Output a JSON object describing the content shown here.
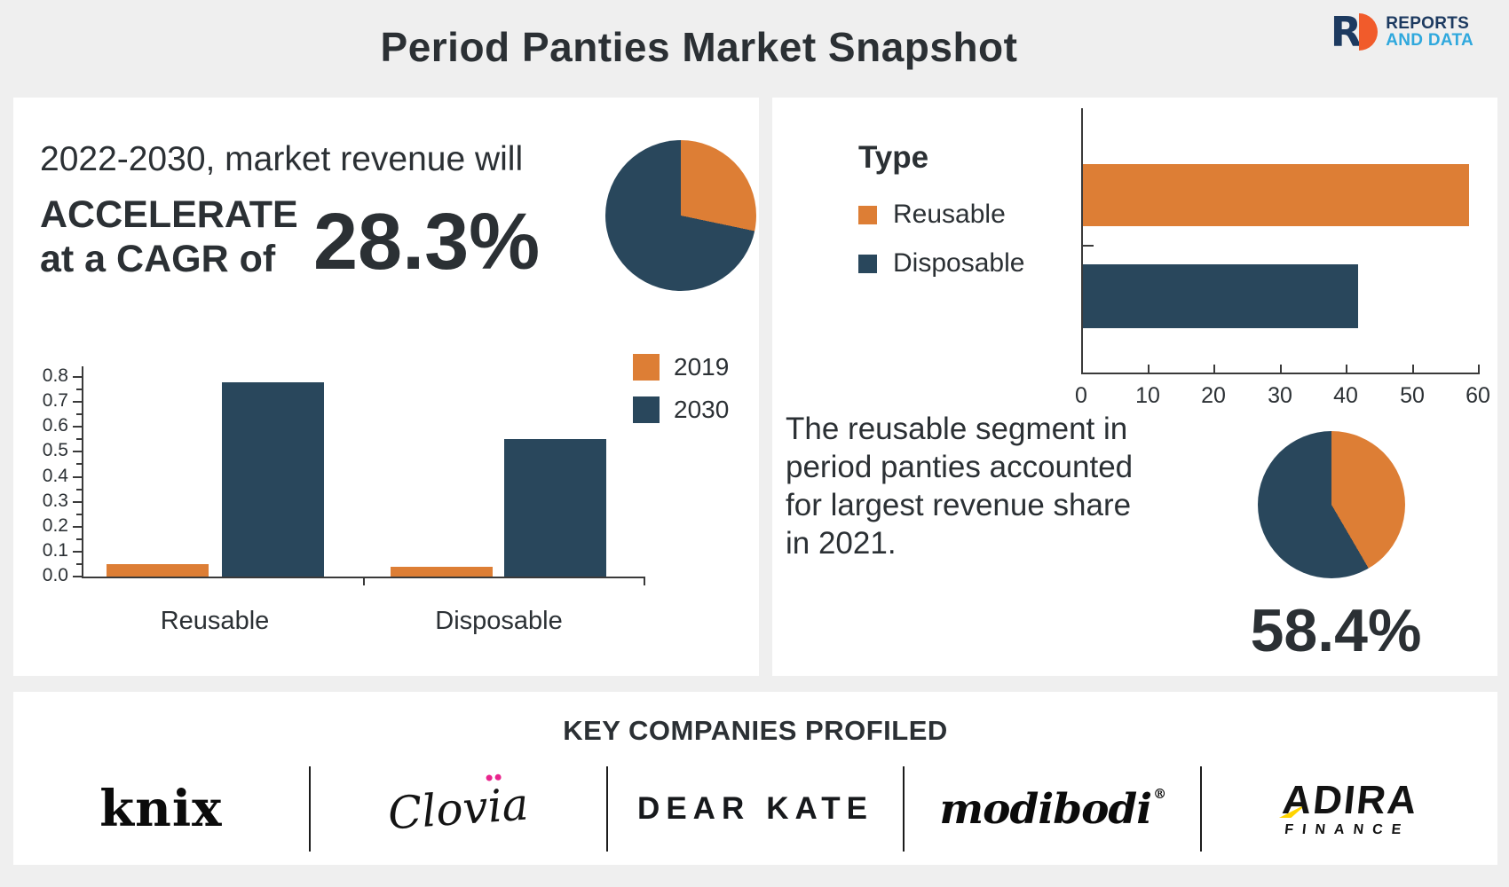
{
  "header": {
    "title": "Period Panties Market Snapshot",
    "logo": {
      "monogram": "R",
      "line1": "REPORTS",
      "line2": "AND DATA"
    }
  },
  "left_panel": {
    "intro_line": "2022-2030, market revenue will",
    "accelerate": "ACCELERATE",
    "cagr_label": "at a CAGR of",
    "cagr_value": "28.3%"
  },
  "right_panel": {
    "legend_title": "Type",
    "caption_lines": [
      "The reusable segment in",
      "period panties accounted",
      "for largest revenue share",
      "in 2021."
    ],
    "share_value": "58.4%"
  },
  "companies": {
    "heading": "KEY COMPANIES PROFILED",
    "knix": "knix",
    "clovia_pre": "Clov",
    "clovia_i": "i",
    "clovia_post": "a",
    "dearkate_word1": "DEAR",
    "dearkate_word2": "KATE",
    "modibodi": "modibodi",
    "modibodi_reg": "®",
    "adira_line1": "ADIRA",
    "adira_line2": "FINANCE"
  },
  "colors": {
    "orange": "#DD7E35",
    "teal": "#29475C",
    "page_bg": "#EFEFEF",
    "card": "#FFFFFF",
    "text": "#2B3034",
    "logo_navy": "#1D3A60",
    "logo_orange": "#F15B2B",
    "logo_blue": "#2FA8DD",
    "clovia_pink": "#E9258D",
    "adira_yellow": "#FFD400"
  },
  "chart_data": [
    {
      "id": "cagr_pie",
      "type": "pie",
      "values": [
        28.3,
        71.7
      ],
      "colors": [
        "#DD7E35",
        "#29475C"
      ]
    },
    {
      "id": "revenue_projection_by_type",
      "type": "bar",
      "categories": [
        "Reusable",
        "Disposable"
      ],
      "series": [
        {
          "name": "2019",
          "color": "#DD7E35",
          "values": [
            0.05,
            0.04
          ]
        },
        {
          "name": "2030",
          "color": "#29475C",
          "values": [
            0.78,
            0.55
          ]
        }
      ],
      "ylim": [
        0,
        0.8
      ],
      "ytick_step": 0.1,
      "legend_position": "top-right",
      "grid": false
    },
    {
      "id": "type_revenue_share",
      "type": "bar-horizontal",
      "bars": [
        {
          "label": "Reusable",
          "value": 58.4,
          "color": "#DD7E35"
        },
        {
          "label": "Disposable",
          "value": 41.6,
          "color": "#29475C"
        }
      ],
      "xlim": [
        0,
        60
      ],
      "xtick_step": 10,
      "grid": false
    },
    {
      "id": "reusable_share_pie_2021",
      "type": "pie",
      "values": [
        41.6,
        58.4
      ],
      "colors": [
        "#DD7E35",
        "#29475C"
      ]
    }
  ]
}
